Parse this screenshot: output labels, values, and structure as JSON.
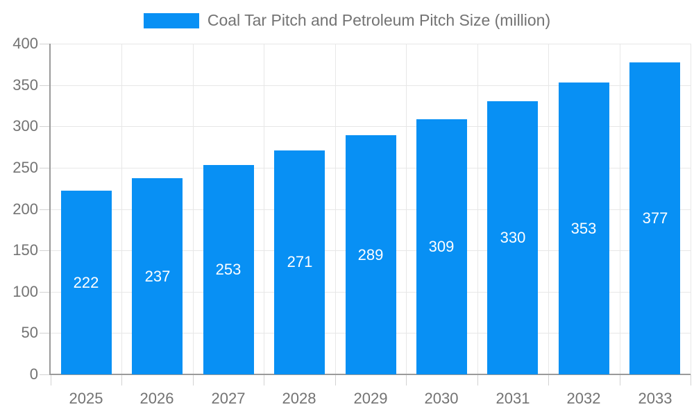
{
  "chart_data": {
    "type": "bar",
    "title": "Coal Tar Pitch and Petroleum Pitch Size (million)",
    "categories": [
      "2025",
      "2026",
      "2027",
      "2028",
      "2029",
      "2030",
      "2031",
      "2032",
      "2033"
    ],
    "values": [
      222,
      237,
      253,
      271,
      289,
      309,
      330,
      353,
      377
    ],
    "xlabel": "",
    "ylabel": "",
    "ylim": [
      0,
      400
    ],
    "yticks": [
      0,
      50,
      100,
      150,
      200,
      250,
      300,
      350,
      400
    ],
    "grid": true,
    "legend_position": "top-center",
    "value_labels_position": "inside-middle",
    "colors": {
      "bar": "#0890f4",
      "axis_line": "#9a9a9a",
      "gridline": "#e7e7e7",
      "tick": "#d2d2d2",
      "axis_text": "#737373",
      "value_text": "#ffffff",
      "background": "#ffffff"
    }
  }
}
